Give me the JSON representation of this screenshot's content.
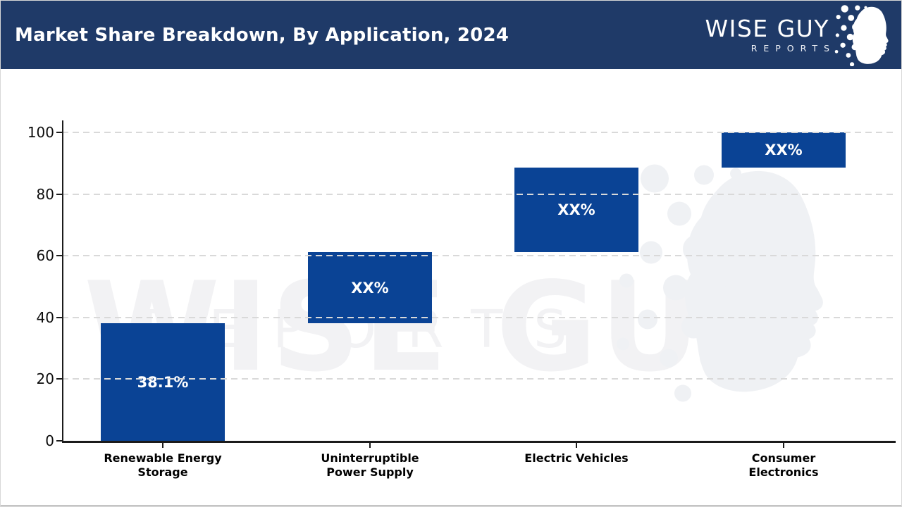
{
  "header": {
    "title": "Market Share Breakdown, By Application, 2024",
    "logo": {
      "wordmark": "WISE GUY",
      "subtext": "REPORTS"
    }
  },
  "watermark": {
    "wordmark": "WISE GUY",
    "subtext": "REPORTS"
  },
  "chart_data": {
    "type": "bar",
    "subtype": "waterfall-floating-bars",
    "title": "Market Share Breakdown, By Application, 2024",
    "categories": [
      "Renewable Energy Storage",
      "Uninterruptible Power Supply",
      "Electric Vehicles",
      "Consumer Electronics"
    ],
    "category_lines": [
      [
        "Renewable Energy",
        "Storage"
      ],
      [
        "Uninterruptible",
        "Power Supply"
      ],
      [
        "Electric Vehicles"
      ],
      [
        "Consumer",
        "Electronics"
      ]
    ],
    "segments": [
      {
        "start": 0,
        "end": 38.1,
        "label": "38.1%"
      },
      {
        "start": 38.1,
        "end": 61.2,
        "label": "XX%"
      },
      {
        "start": 61.2,
        "end": 88.6,
        "label": "XX%"
      },
      {
        "start": 88.6,
        "end": 100,
        "label": "XX%"
      }
    ],
    "ylim": [
      0,
      100
    ],
    "yticks": [
      0,
      20,
      40,
      60,
      80,
      100
    ],
    "grid": "horizontal-dashed",
    "legend": "none",
    "bar_color": "#0a4395",
    "bar_label_color": "#ffffff"
  }
}
